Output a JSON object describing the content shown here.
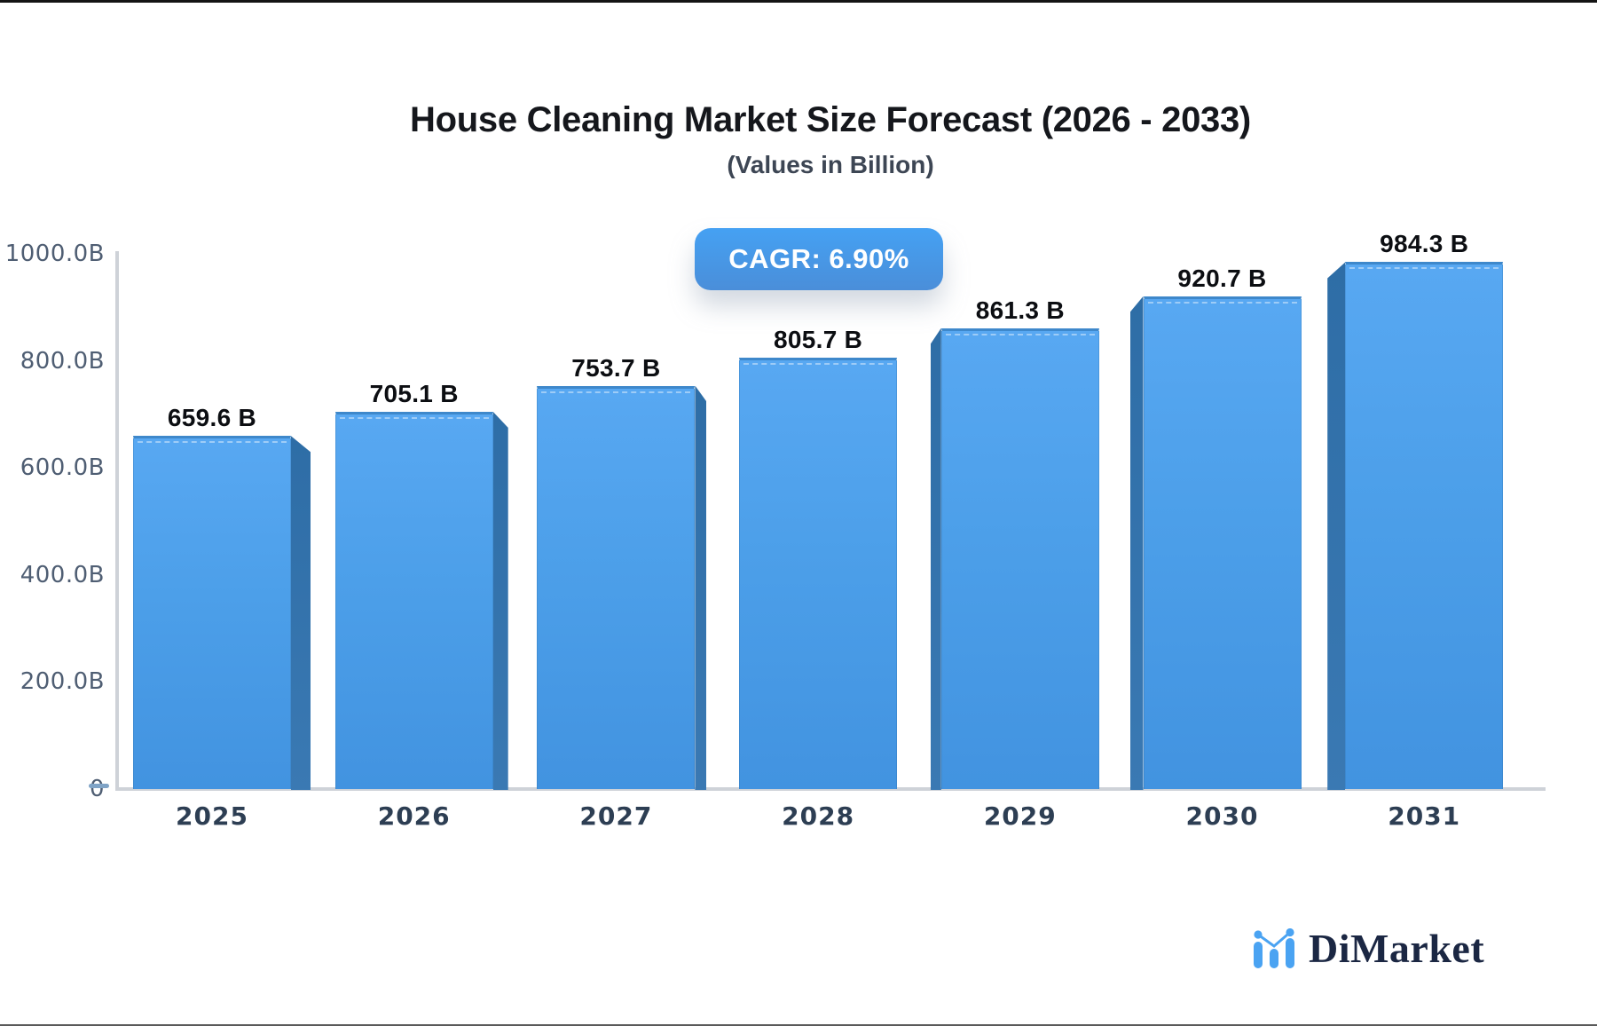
{
  "header": {
    "title": "House Cleaning Market Size Forecast (2026 - 2033)",
    "subtitle": "(Values in Billion)"
  },
  "badge": {
    "label": "CAGR: 6.90%"
  },
  "logo": {
    "text": "DiMarket"
  },
  "chart_data": {
    "type": "bar",
    "title": "House Cleaning Market Size Forecast (2026 - 2033)",
    "subtitle": "(Values in Billion)",
    "badge": "CAGR: 6.90%",
    "categories": [
      "2025",
      "2026",
      "2027",
      "2028",
      "2029",
      "2030",
      "2031"
    ],
    "values": [
      659.6,
      705.1,
      753.7,
      805.7,
      861.3,
      920.7,
      984.3
    ],
    "value_labels": [
      "659.6 B",
      "705.1 B",
      "753.7 B",
      "805.7 B",
      "861.3 B",
      "920.7 B",
      "984.3 B"
    ],
    "unit": "Billion",
    "yticks": [
      {
        "label": "1000.0B",
        "value": 1000
      },
      {
        "label": "800.0B",
        "value": 800
      },
      {
        "label": "600.0B",
        "value": 600
      },
      {
        "label": "400.0B",
        "value": 400
      },
      {
        "label": "200.0B",
        "value": 200
      },
      {
        "label": "0",
        "value": 0
      }
    ],
    "ylim": [
      0,
      1000
    ],
    "grid": false,
    "legend": "none",
    "bar_style": "3d-extruded-blue"
  },
  "colors": {
    "title": "#15171c",
    "subtitle": "#3d4654",
    "ylabel": "#4f5e73",
    "xlabel": "#2d3e53",
    "value": "#0c0e12",
    "axis": "#ced2d8",
    "tick_dash": "#7fa3c6",
    "face_top": "#58a8f2",
    "face_bottom": "#4293e0",
    "side": "#2e6da6",
    "badge_top": "#45a1f3",
    "badge_bottom": "#4a8ed9",
    "logo_text": "#1b2743",
    "logo_icon": "#4aa3f2"
  }
}
